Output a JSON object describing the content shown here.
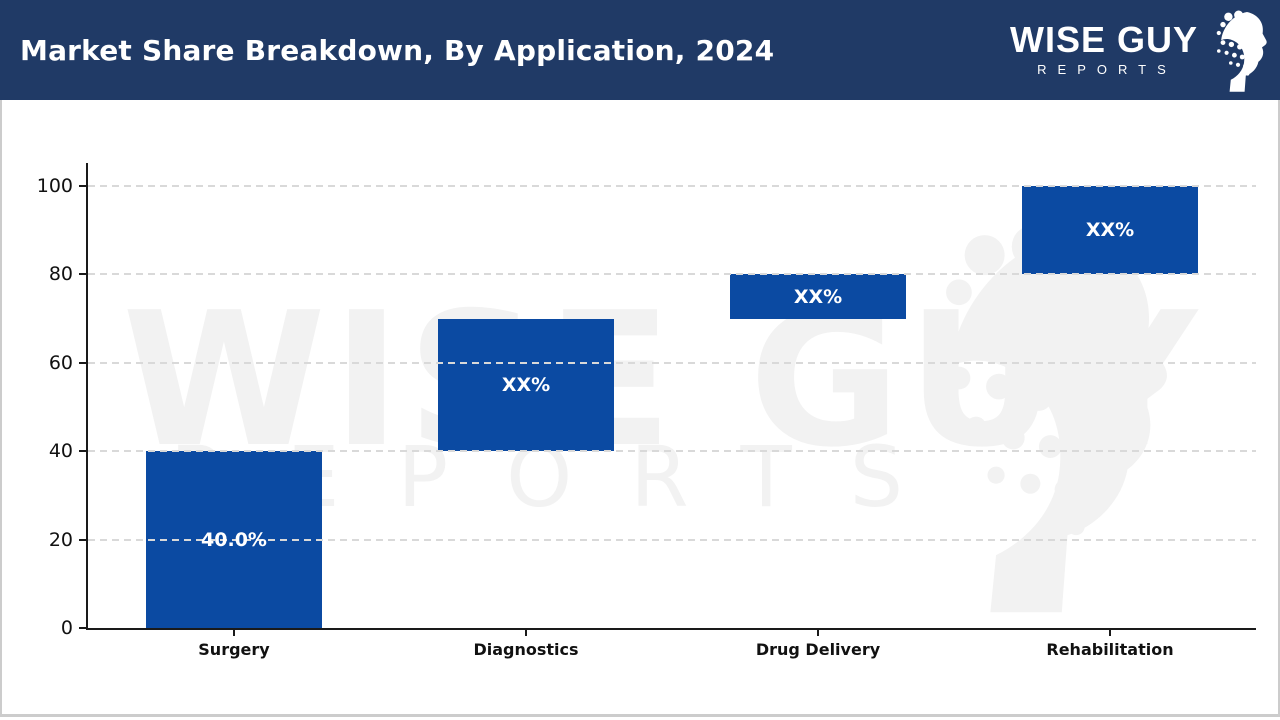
{
  "header": {
    "title": "Market Share Breakdown, By Application, 2024"
  },
  "logo": {
    "name_top": "WISE GUY",
    "name_bottom": "REPORTS"
  },
  "watermark": {
    "text_top": "WISE GUY",
    "text_bottom": "REPORTS"
  },
  "colors": {
    "header_bg": "#203a66",
    "title_text": "#ffffff",
    "bar_fill": "#0b4aa2",
    "bar_label": "#ffffff",
    "grid_line": "#d9d9d9",
    "axis_line": "#1a1a1a",
    "tick_label": "#111111",
    "watermark": "#f2f2f2",
    "page_border": "#cccccc"
  },
  "chart_data": {
    "type": "bar",
    "subtype": "waterfall",
    "title": "Market Share Breakdown, By Application, 2024",
    "categories": [
      "Surgery",
      "Diagnostics",
      "Drug Delivery",
      "Rehabilitation"
    ],
    "values": [
      40,
      30,
      10,
      20
    ],
    "cumulative_start": [
      0,
      40,
      70,
      80
    ],
    "cumulative_end": [
      40,
      70,
      80,
      100
    ],
    "bar_labels": [
      "40.0%",
      "XX%",
      "XX%",
      "XX%"
    ],
    "xlabel": "",
    "ylabel": "",
    "ylim": [
      0,
      100
    ],
    "yticks": [
      0,
      20,
      40,
      60,
      80,
      100
    ],
    "grid": "horizontal-dashed",
    "legend": "none"
  }
}
